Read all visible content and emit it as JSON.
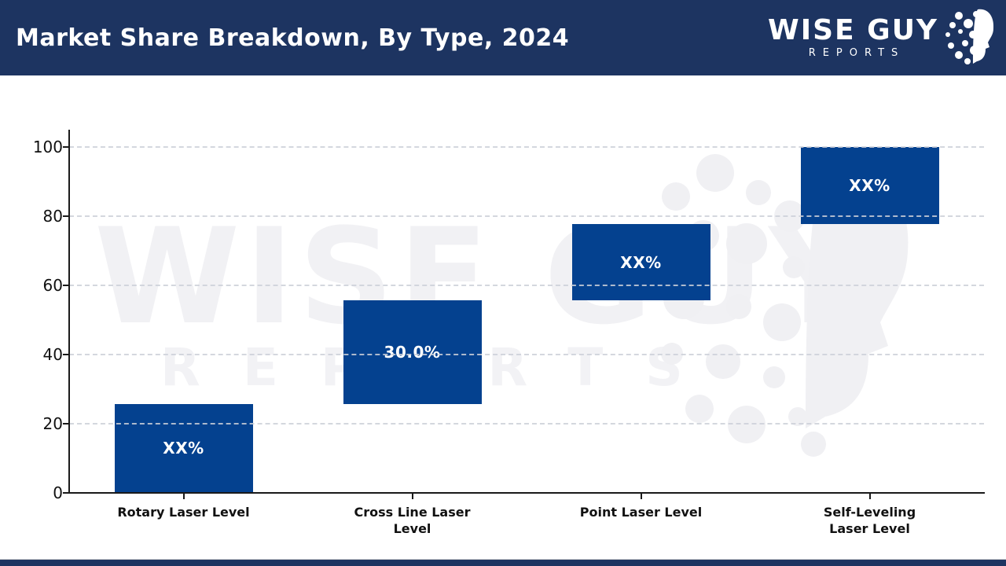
{
  "header": {
    "title": "Market Share Breakdown, By Type, 2024",
    "logo": {
      "name": "WISE GUY",
      "sub": "REPORTS"
    }
  },
  "watermark": {
    "line1": "WISE GUY",
    "line2": "REPORTS"
  },
  "chart_data": {
    "type": "bar",
    "subtype": "floating-waterfall",
    "title": "Market Share Breakdown, By Type, 2024",
    "categories": [
      "Rotary Laser Level",
      "Cross Line Laser Level",
      "Point Laser Level",
      "Self-Leveling Laser Level"
    ],
    "bars": [
      {
        "category": "Rotary Laser Level",
        "label_lines": [
          "Rotary Laser Level"
        ],
        "start": 0,
        "end": 25.7,
        "value_label": "XX%"
      },
      {
        "category": "Cross Line Laser Level",
        "label_lines": [
          "Cross Line Laser",
          "Level"
        ],
        "start": 25.7,
        "end": 55.7,
        "value_label": "30.0%"
      },
      {
        "category": "Point Laser Level",
        "label_lines": [
          "Point Laser Level"
        ],
        "start": 55.7,
        "end": 77.7,
        "value_label": "XX%"
      },
      {
        "category": "Self-Leveling Laser Level",
        "label_lines": [
          "Self-Leveling",
          "Laser Level"
        ],
        "start": 77.7,
        "end": 100,
        "value_label": "XX%"
      }
    ],
    "xlabel": "",
    "ylabel": "",
    "ylim": [
      0,
      105
    ],
    "yticks": [
      0,
      20,
      40,
      60,
      80,
      100
    ],
    "grid": {
      "horizontal": true,
      "style": "dashed"
    },
    "legend": "none",
    "colors": {
      "bar": "#04418f",
      "bar_label": "#ffffff",
      "axis": "#1a1a1a",
      "grid": "#dcdcdc",
      "header_bg": "#1d3461"
    }
  }
}
